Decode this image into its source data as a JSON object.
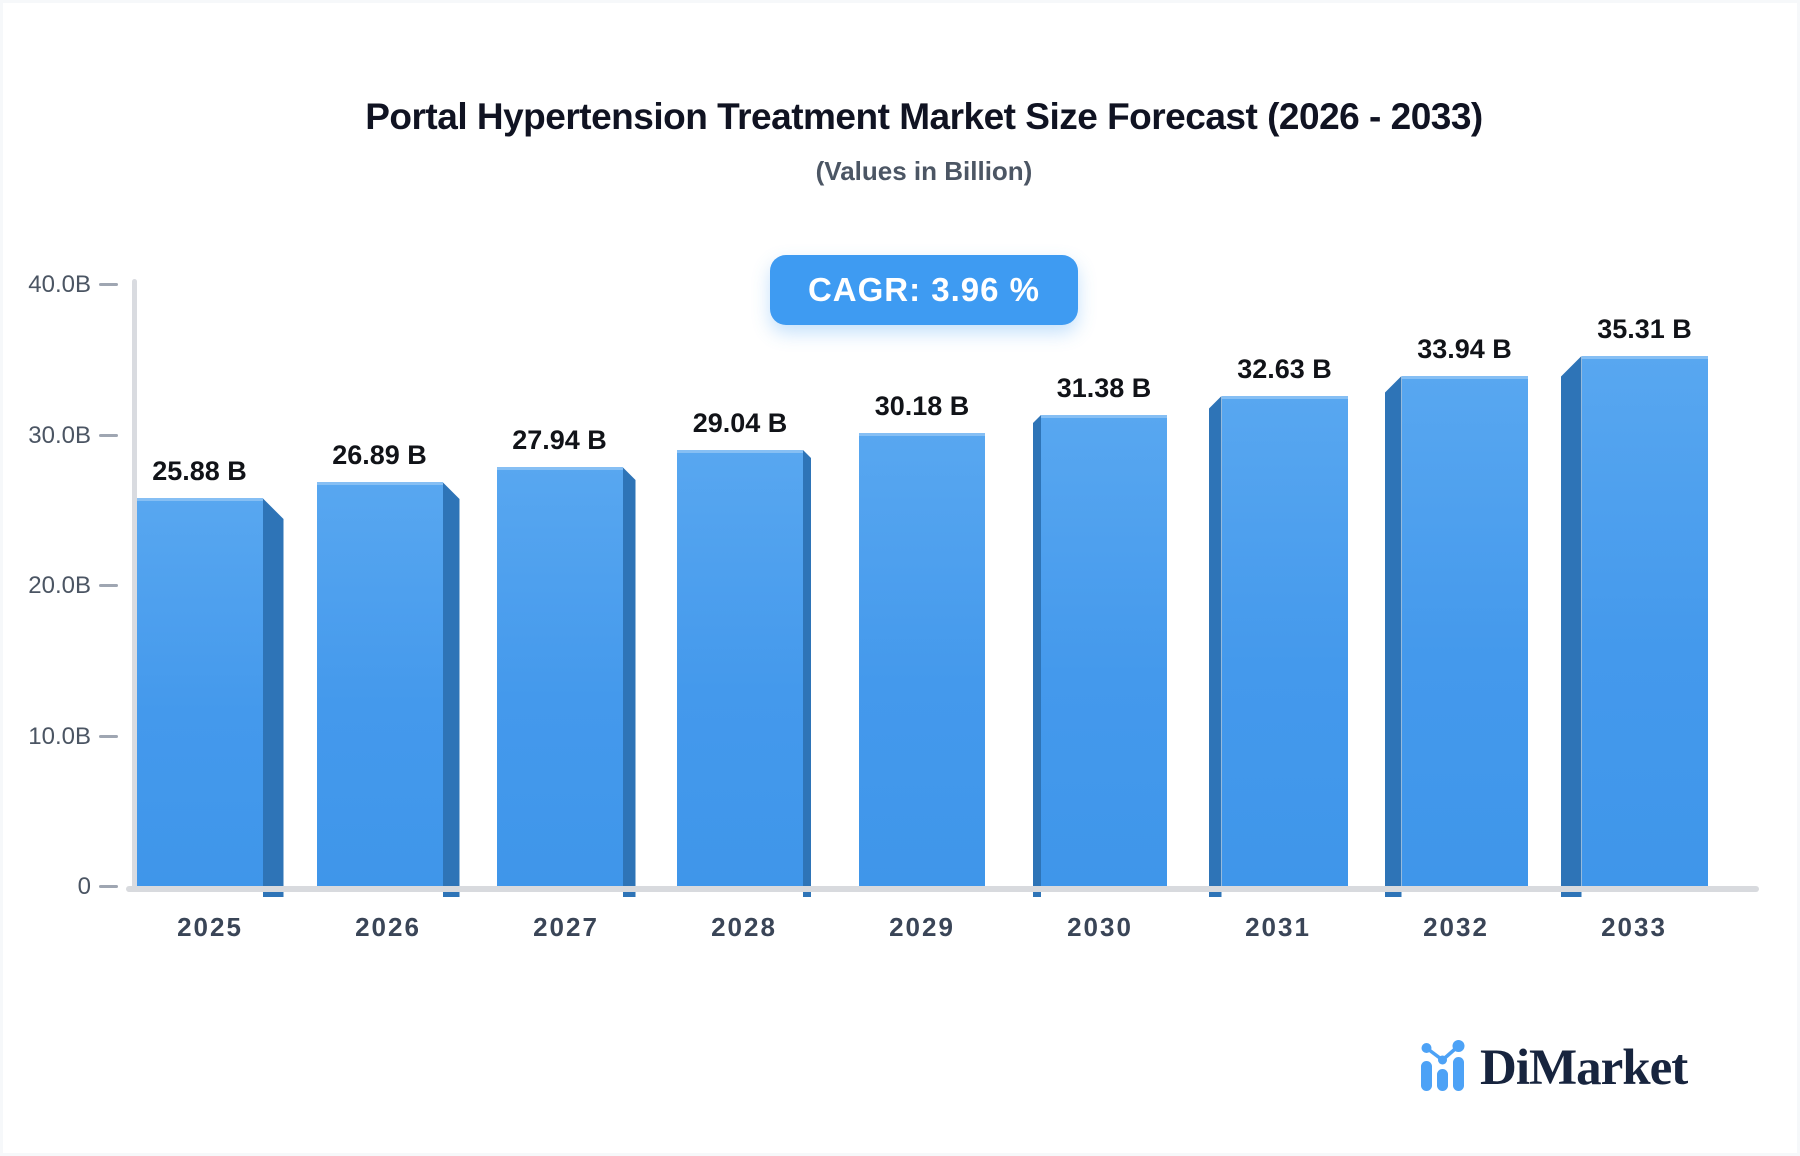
{
  "header": {
    "title": "Portal Hypertension Treatment Market Size Forecast (2026 - 2033)",
    "subtitle": "(Values in Billion)"
  },
  "badge": {
    "label": "CAGR: 3.96 %"
  },
  "brand": {
    "name": "DiMarket",
    "icon": "dimarket-bar-line-logo-icon"
  },
  "colors": {
    "bar_face_top": "#58a7f0",
    "bar_face_mid": "#4499ec",
    "bar_face_bottom": "#3f96ea",
    "bar_side": "#2e74b7",
    "badge_bg": "#3e9bf2",
    "badge_text": "#ffffff",
    "axis_line": "#d9dbe0",
    "baseline": "#d8dade",
    "tick_dash": "#9fa6b2",
    "tick_label": "#4b5563",
    "year_label": "#3a4557",
    "value_label": "#111318",
    "title": "#101322",
    "subtitle": "#4c5664",
    "logo_blue": "#4da2f6",
    "logo_text": "#17243e",
    "background": "#ffffff"
  },
  "chart_data": {
    "type": "bar",
    "title": "Portal Hypertension Treatment Market Size Forecast (2026 - 2033)",
    "subtitle": "(Values in Billion)",
    "unit": "Billion",
    "xlabel": "",
    "ylabel": "",
    "categories": [
      "2025",
      "2026",
      "2027",
      "2028",
      "2029",
      "2030",
      "2031",
      "2032",
      "2033"
    ],
    "values": [
      25.88,
      26.89,
      27.94,
      29.04,
      30.18,
      31.38,
      32.63,
      33.94,
      35.31
    ],
    "labels": [
      "25.88 B",
      "26.89 B",
      "27.94 B",
      "29.04 B",
      "30.18 B",
      "31.38 B",
      "32.63 B",
      "33.94 B",
      "35.31 B"
    ],
    "ylim": [
      0,
      40
    ],
    "y_ticks": [
      {
        "label": "40.0B",
        "value": 40
      },
      {
        "label": "30.0B",
        "value": 30
      },
      {
        "label": "20.0B",
        "value": 20
      },
      {
        "label": "10.0B",
        "value": 10
      },
      {
        "label": "0",
        "value": 0
      }
    ],
    "grid": false,
    "legend": false,
    "annotation": "CAGR: 3.96 %",
    "style": "3d-perspective-columns-center-vanishing"
  }
}
